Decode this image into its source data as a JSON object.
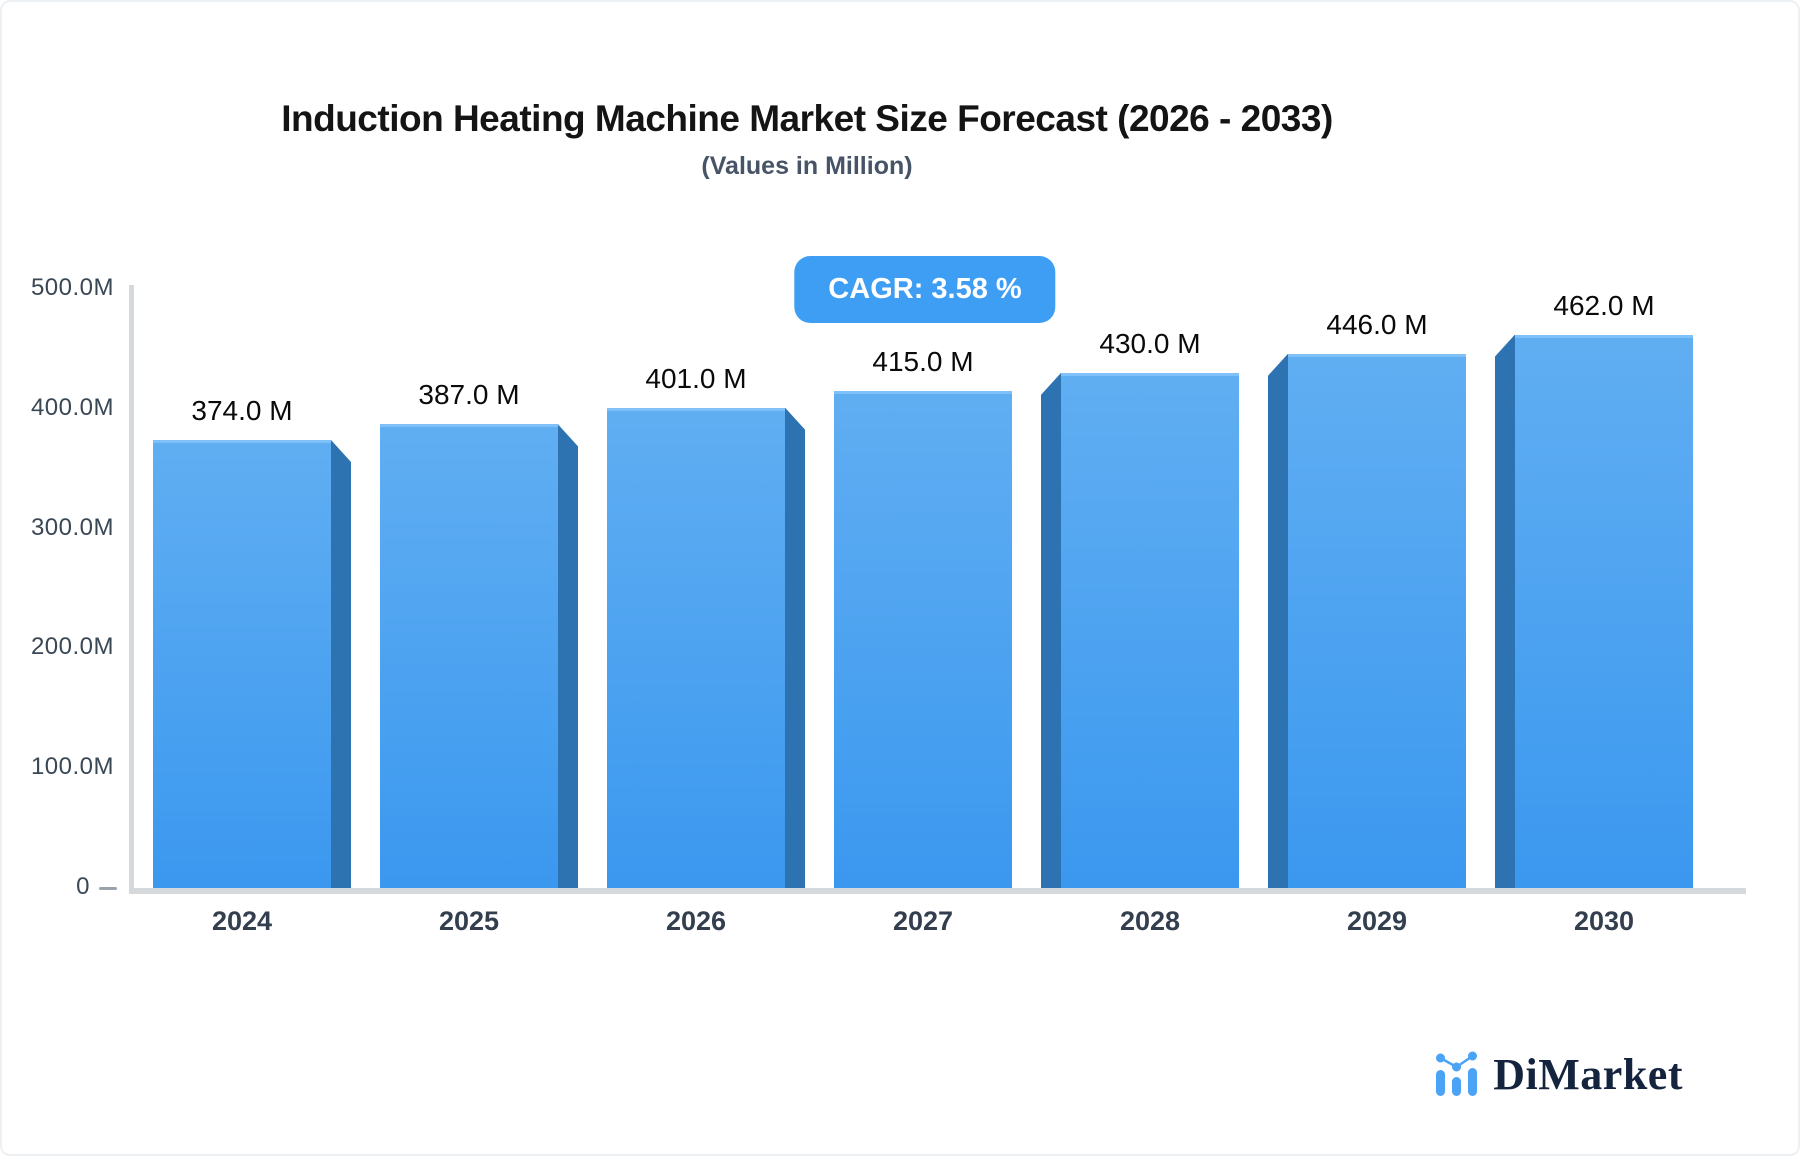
{
  "title": "Induction Heating Machine Market Size Forecast (2026 - 2033)",
  "subtitle": "(Values in Million)",
  "badge": {
    "label": "CAGR: 3.58 %"
  },
  "logo": {
    "text": "DiMarket",
    "icon": "bar-line-chart-icon"
  },
  "colors": {
    "bar_face_top": "#60AEF2",
    "bar_face_bottom": "#3B98EF",
    "bar_top_highlight": "#7EC0F7",
    "bar_side": "#2D73B2",
    "axis_line": "#D6D9DC",
    "tick_dash": "#9AA2AC",
    "badge_bg": "#3E9EF3",
    "badge_text": "#FFFFFF",
    "value_label": "#0A0A0A",
    "axis_label": "#3A4754",
    "logo_blue": "#4AA3F5",
    "logo_text": "#14243E"
  },
  "chart_data": {
    "type": "bar",
    "title": "Induction Heating Machine Market Size Forecast (2026 - 2033)",
    "subtitle": "(Values in Million)",
    "unit": "Million",
    "categories": [
      "2024",
      "2025",
      "2026",
      "2027",
      "2028",
      "2029",
      "2030"
    ],
    "values": [
      374,
      387,
      401,
      415,
      430,
      446,
      462
    ],
    "value_labels": [
      "374.0 M",
      "387.0 M",
      "401.0 M",
      "415.0 M",
      "430.0 M",
      "446.0 M",
      "462.0 M"
    ],
    "ylim": [
      0,
      500
    ],
    "y_ticks": [
      {
        "label": "500.0M",
        "value": 500
      },
      {
        "label": "400.0M",
        "value": 400
      },
      {
        "label": "300.0M",
        "value": 300
      },
      {
        "label": "200.0M",
        "value": 200
      },
      {
        "label": "100.0M",
        "value": 100
      },
      {
        "label": "0",
        "value": 0
      }
    ],
    "grid": false,
    "legend": false,
    "bar_style": "3d-beveled",
    "annotations": [
      {
        "text": "CAGR: 3.58 %",
        "position": "top-center"
      }
    ]
  }
}
